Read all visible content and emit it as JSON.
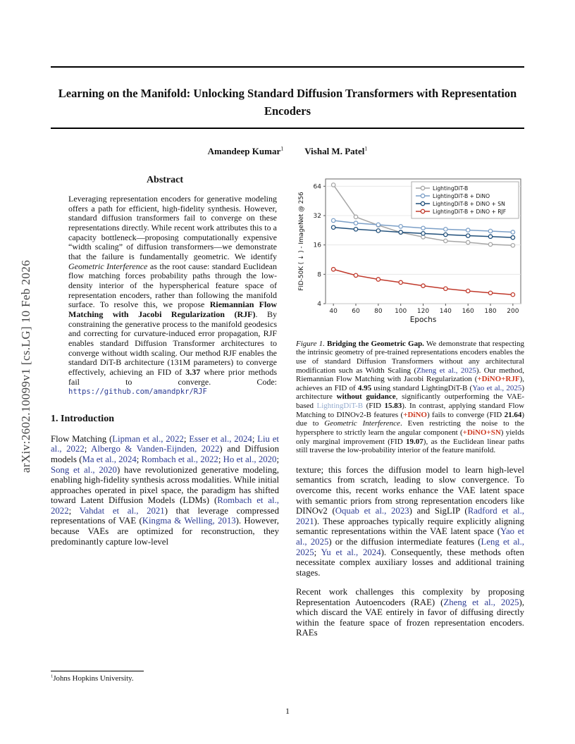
{
  "meta": {
    "arxiv_watermark": "arXiv:2602.10099v1  [cs.LG]  10 Feb 2026",
    "page_number": "1"
  },
  "header": {
    "title": "Learning on the Manifold: Unlocking Standard Diffusion Transformers with Representation Encoders",
    "authors": [
      {
        "t": "Amandeep Kumar",
        "s": "b"
      },
      {
        "t": "1",
        "s": "sup"
      },
      {
        "t": "",
        "s": "gap"
      },
      {
        "t": "Vishal M. Patel",
        "s": "b"
      },
      {
        "t": "1",
        "s": "sup"
      }
    ]
  },
  "abstract": {
    "heading": "Abstract",
    "body": [
      {
        "t": "Leveraging representation encoders for generative modeling offers a path for efficient, high-fidelity synthesis. However, standard diffusion transformers fail to converge on these representations directly. While recent work attributes this to a capacity bottleneck—proposing computationally expensive “width scaling” of diffusion transformers—we demonstrate that the failure is fundamentally geometric. We identify ",
        "s": ""
      },
      {
        "t": "Geometric Interference",
        "s": "i"
      },
      {
        "t": " as the root cause: standard Euclidean flow matching forces probability paths through the low-density interior of the hyperspherical feature space of representation encoders, rather than following the manifold surface. To resolve this, we propose ",
        "s": ""
      },
      {
        "t": "Riemannian Flow Matching with Jacobi Regularization (RJF)",
        "s": "b"
      },
      {
        "t": ". By constraining the generative process to the manifold geodesics and correcting for curvature-induced error propagation, RJF enables standard Diffusion Transformer architectures to converge without width scaling. Our method RJF enables the standard DiT-B architecture (131M parameters) to converge effectively, achieving an FID of ",
        "s": ""
      },
      {
        "t": "3.37",
        "s": "b"
      },
      {
        "t": " where prior methods fail to converge. Code: ",
        "s": ""
      },
      {
        "t": "https://github.com/amandpkr/RJF",
        "s": "mono"
      }
    ]
  },
  "figure": {
    "caption": [
      {
        "t": "Figure 1.",
        "s": "i"
      },
      {
        "t": " ",
        "s": ""
      },
      {
        "t": "Bridging the Geometric Gap.",
        "s": "b"
      },
      {
        "t": " We demonstrate that respecting the intrinsic geometry of pre-trained representations encoders enables the use of standard Diffusion Transformers without any architectural modification such as Width Scaling (",
        "s": ""
      },
      {
        "t": "Zheng et al., 2025",
        "s": "link"
      },
      {
        "t": "). Our method, Riemannian Flow Matching with Jacobi Regularization (",
        "s": ""
      },
      {
        "t": "+DiNO+RJF",
        "s": "red"
      },
      {
        "t": "), achieves an FID of ",
        "s": ""
      },
      {
        "t": "4.95",
        "s": "b"
      },
      {
        "t": " using standard LightingDiT-B (",
        "s": ""
      },
      {
        "t": "Yao et al., 2025",
        "s": "link"
      },
      {
        "t": ") architecture ",
        "s": ""
      },
      {
        "t": "without guidance",
        "s": "b"
      },
      {
        "t": ", significantly outperforming the VAE-based ",
        "s": ""
      },
      {
        "t": "LightingDiT-B",
        "s": "lb"
      },
      {
        "t": " (FID ",
        "s": ""
      },
      {
        "t": "15.83",
        "s": "b"
      },
      {
        "t": "). In contrast, applying standard Flow Matching to DINOv2-B features (",
        "s": ""
      },
      {
        "t": "+DiNO",
        "s": "red"
      },
      {
        "t": ") fails to converge (FID ",
        "s": ""
      },
      {
        "t": "21.64",
        "s": "b"
      },
      {
        "t": ") due to ",
        "s": ""
      },
      {
        "t": "Geometric Interference",
        "s": "i"
      },
      {
        "t": ". Even restricting the noise to the hypersphere to strictly learn the angular component (",
        "s": ""
      },
      {
        "t": "+DiNO+SN",
        "s": "red"
      },
      {
        "t": ") yields only marginal improvement (FID ",
        "s": ""
      },
      {
        "t": "19.07",
        "s": "b"
      },
      {
        "t": "), as the Euclidean linear paths still traverse the low-probability interior of the feature manifold.",
        "s": ""
      }
    ]
  },
  "chart_data": {
    "type": "line",
    "title": "",
    "xlabel": "Epochs",
    "ylabel": "FID-50K ( ↓ ) - ImageNet @ 256",
    "x": [
      40,
      60,
      80,
      100,
      120,
      140,
      160,
      180,
      200
    ],
    "xticks": [
      40,
      60,
      80,
      100,
      120,
      140,
      160,
      180,
      200
    ],
    "yticks": [
      4,
      8,
      16,
      32,
      64
    ],
    "xlim": [
      33,
      207
    ],
    "ylim": [
      4,
      76
    ],
    "yscale": "log2",
    "grid": true,
    "legend_position": "top-right",
    "series": [
      {
        "name": "LightingDiT-B",
        "color": "#a6a6a6",
        "values": [
          66,
          31,
          25.5,
          21.5,
          19.3,
          17.6,
          17.0,
          16.2,
          15.83
        ]
      },
      {
        "name": "LightingDiT-B + DiNO",
        "color": "#7b9fc7",
        "values": [
          28.5,
          26.8,
          25.8,
          24.8,
          23.8,
          23.2,
          22.7,
          22.2,
          21.64
        ]
      },
      {
        "name": "LightingDiT-B + DiNO + SN",
        "color": "#1f4e79",
        "values": [
          24.2,
          23.2,
          22.4,
          21.6,
          21.0,
          20.4,
          19.9,
          19.5,
          19.07
        ]
      },
      {
        "name": "LightingDiT-B + DiNO + RJF",
        "color": "#c0392b",
        "values": [
          9.0,
          7.8,
          7.1,
          6.6,
          6.1,
          5.7,
          5.4,
          5.15,
          4.95
        ]
      }
    ]
  },
  "introduction": {
    "heading": "1. Introduction",
    "left_paragraph": [
      {
        "t": "Flow Matching (",
        "s": ""
      },
      {
        "t": "Lipman et al., 2022",
        "s": "link"
      },
      {
        "t": "; ",
        "s": ""
      },
      {
        "t": "Esser et al., 2024",
        "s": "link"
      },
      {
        "t": "; ",
        "s": ""
      },
      {
        "t": "Liu et al., 2022",
        "s": "link"
      },
      {
        "t": "; ",
        "s": ""
      },
      {
        "t": "Albergo & Vanden-Eijnden, 2022",
        "s": "link"
      },
      {
        "t": ") and Diffusion models (",
        "s": ""
      },
      {
        "t": "Ma et al., 2024",
        "s": "link"
      },
      {
        "t": "; ",
        "s": ""
      },
      {
        "t": "Rombach et al., 2022",
        "s": "link"
      },
      {
        "t": "; ",
        "s": ""
      },
      {
        "t": "Ho et al., 2020",
        "s": "link"
      },
      {
        "t": "; ",
        "s": ""
      },
      {
        "t": "Song et al., 2020",
        "s": "link"
      },
      {
        "t": ") have revolutionized generative modeling, enabling high-fidelity synthesis across modalities. While initial approaches operated in pixel space, the paradigm has shifted toward Latent Diffusion Models (LDMs) (",
        "s": ""
      },
      {
        "t": "Rombach et al., 2022",
        "s": "link"
      },
      {
        "t": "; ",
        "s": ""
      },
      {
        "t": "Vahdat et al., 2021",
        "s": "link"
      },
      {
        "t": ") that leverage compressed representations of VAE (",
        "s": ""
      },
      {
        "t": "Kingma & Welling, 2013",
        "s": "link"
      },
      {
        "t": "). However, because VAEs are optimized for reconstruction, they predominantly capture low-level",
        "s": ""
      }
    ],
    "right_paragraphs": {
      "p1": [
        {
          "t": "texture; this forces the diffusion model to learn high-level semantics from scratch, leading to slow convergence. To overcome this, recent works enhance the VAE latent space with semantic priors from strong representation encoders like DINOv2 (",
          "s": ""
        },
        {
          "t": "Oquab et al., 2023",
          "s": "link"
        },
        {
          "t": ") and SigLIP (",
          "s": ""
        },
        {
          "t": "Radford et al., 2021",
          "s": "link"
        },
        {
          "t": ").  These approaches typically require explicitly aligning semantic representations within the VAE latent space (",
          "s": ""
        },
        {
          "t": "Yao et al., 2025",
          "s": "link"
        },
        {
          "t": ") or the diffusion intermediate features (",
          "s": ""
        },
        {
          "t": "Leng et al., 2025",
          "s": "link"
        },
        {
          "t": "; ",
          "s": ""
        },
        {
          "t": "Yu et al., 2024",
          "s": "link"
        },
        {
          "t": ").  Consequently, these methods often necessitate complex auxiliary losses and additional training stages.",
          "s": ""
        }
      ],
      "p2": [
        {
          "t": "Recent work challenges this complexity by proposing Representation Autoencoders (RAE) (",
          "s": ""
        },
        {
          "t": "Zheng et al., 2025",
          "s": "link"
        },
        {
          "t": "), which discard the VAE entirely in favor of diffusing directly within the feature space of frozen representation encoders. RAEs",
          "s": ""
        }
      ]
    }
  },
  "footnote": [
    {
      "t": "1",
      "s": "sup"
    },
    {
      "t": "Johns Hopkins University.",
      "s": ""
    }
  ]
}
